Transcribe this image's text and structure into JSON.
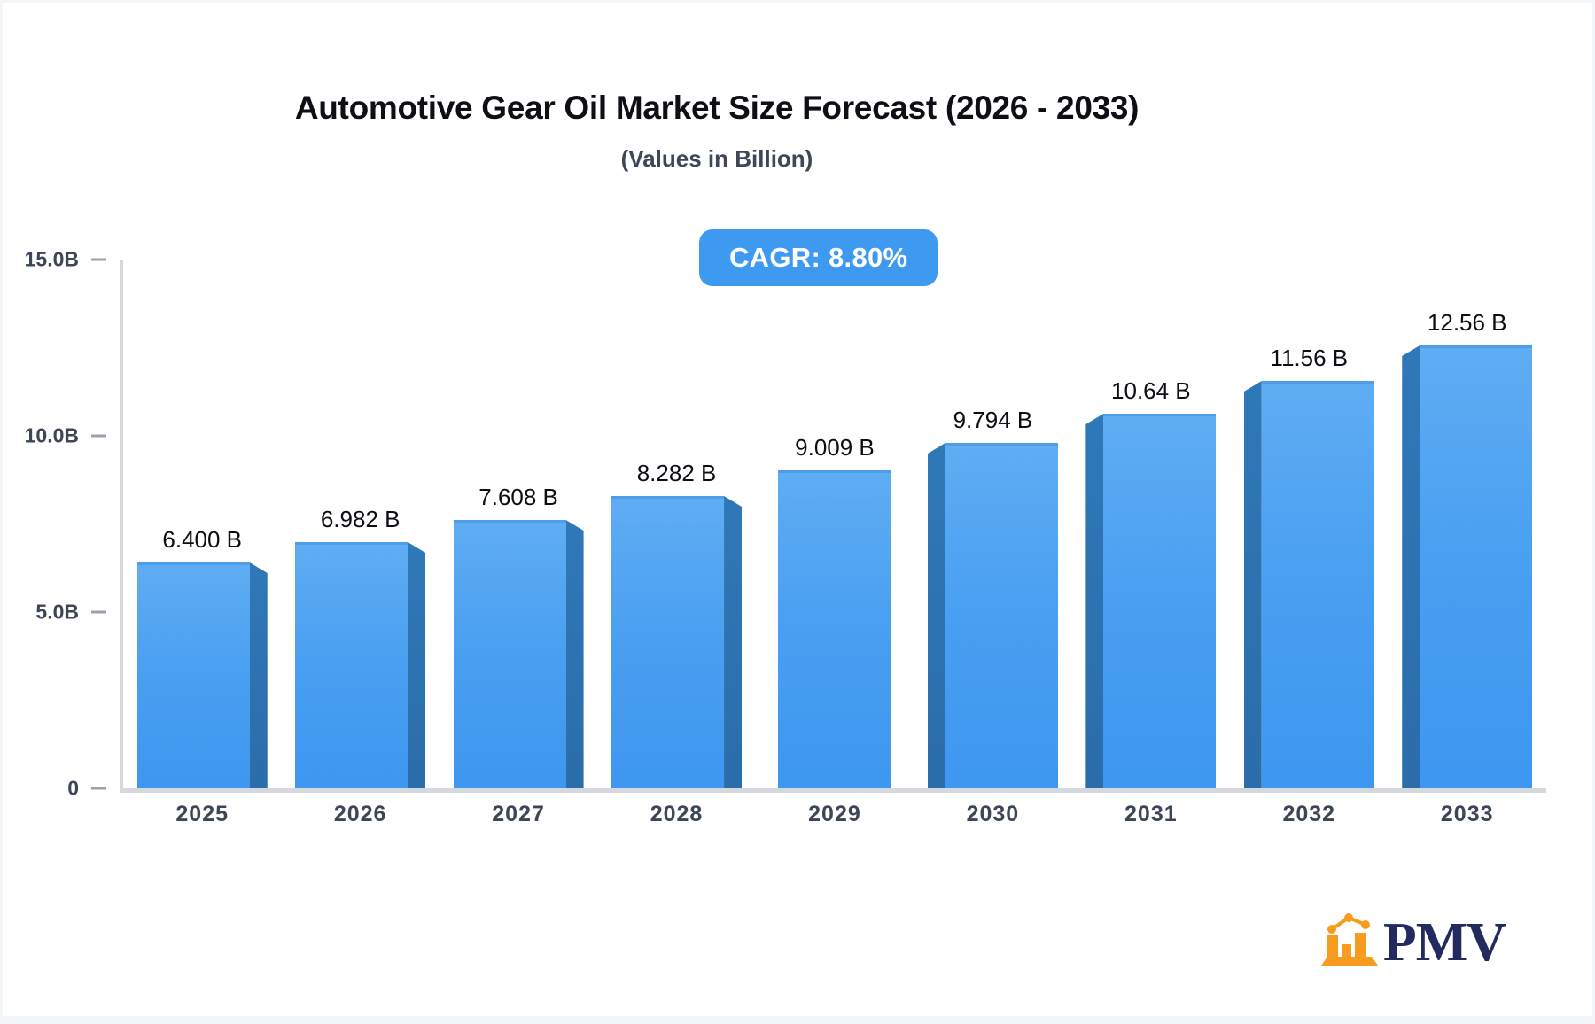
{
  "header": {
    "title": "Automotive Gear Oil Market Size Forecast (2026 - 2033)",
    "subtitle": "(Values in Billion)"
  },
  "badge": {
    "label": "CAGR: 8.80%"
  },
  "chart_data": {
    "type": "bar",
    "title": "Automotive Gear Oil Market Size Forecast (2026 - 2033)",
    "subtitle": "(Values in Billion)",
    "unit": "Billion",
    "cagr_percent": 8.8,
    "categories": [
      "2025",
      "2026",
      "2027",
      "2028",
      "2029",
      "2030",
      "2031",
      "2032",
      "2033"
    ],
    "values": [
      6.4,
      6.982,
      7.608,
      8.282,
      9.009,
      9.794,
      10.64,
      11.56,
      12.56
    ],
    "value_labels": [
      "6.400 B",
      "6.982 B",
      "7.608 B",
      "8.282 B",
      "9.009 B",
      "9.794 B",
      "10.64 B",
      "11.56 B",
      "12.56 B"
    ],
    "ylim": [
      0,
      15
    ],
    "yticks": [
      {
        "value": 15,
        "label": "15.0B"
      },
      {
        "value": 10,
        "label": "10.0B"
      },
      {
        "value": 5,
        "label": "5.0B"
      },
      {
        "value": 0,
        "label": "0"
      }
    ],
    "grid": false,
    "legend": false,
    "bevel_sides": [
      "right",
      "right",
      "right",
      "right",
      "none",
      "left",
      "left",
      "left",
      "left"
    ],
    "colors": {
      "bar_face_top": "#5fadf3",
      "bar_face_bottom": "#3e97f0",
      "bar_side_dark": "#2d72b2",
      "badge_blue": "#3e9af0",
      "axis_line": "#d5d8dd",
      "tick_dash": "#99a1ac",
      "label_text": "#0c0e13",
      "axis_text": "#3d4654"
    }
  },
  "logo": {
    "text": "PMV",
    "icon": "bar-chart-logo-icon",
    "icon_color": "#f79c1f",
    "text_color": "#232a5e"
  }
}
